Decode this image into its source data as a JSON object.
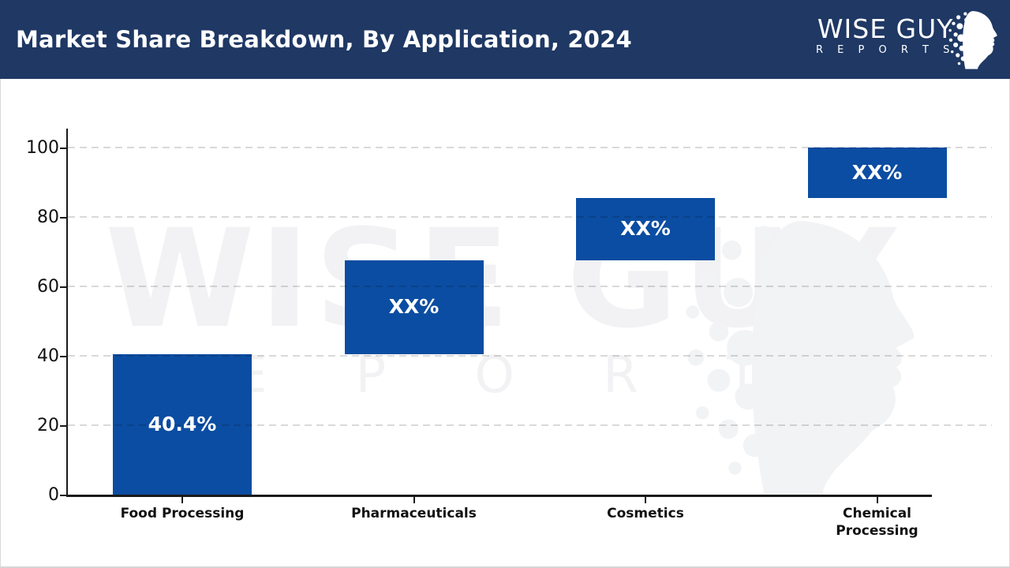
{
  "header": {
    "title": "Market Share Breakdown, By Application, 2024",
    "bg_color": "#1f3864",
    "logo": {
      "wordmark": "WISE GUY",
      "subtext": "R E P O R T S"
    }
  },
  "watermark": {
    "line1": "WISE GUY",
    "line2": "R E P O R T S"
  },
  "chart_data": {
    "type": "bar",
    "subtype": "waterfall",
    "title": "Market Share Breakdown, By Application, 2024",
    "categories": [
      "Food Processing",
      "Pharmaceuticals",
      "Cosmetics",
      "Chemical Processing"
    ],
    "xtick_labels": [
      "Food Processing",
      "Pharmaceuticals",
      "Cosmetics",
      "Chemical\nProcessing"
    ],
    "segments": [
      {
        "category": "Food Processing",
        "start": 0,
        "end": 40.4,
        "label": "40.4%"
      },
      {
        "category": "Pharmaceuticals",
        "start": 40.4,
        "end": 67.6,
        "label": "XX%"
      },
      {
        "category": "Cosmetics",
        "start": 67.6,
        "end": 85.5,
        "label": "XX%"
      },
      {
        "category": "Chemical Processing",
        "start": 85.5,
        "end": 100,
        "label": "XX%"
      }
    ],
    "yticks": [
      0,
      20,
      40,
      60,
      80,
      100
    ],
    "ylim": [
      0,
      105
    ],
    "xlabel": "",
    "ylabel": "",
    "grid": true,
    "grid_style": "dashed",
    "legend": false,
    "bar_color": "#0b4da2",
    "bar_label_color": "#ffffff",
    "axis_color": "#1a1a1a"
  }
}
